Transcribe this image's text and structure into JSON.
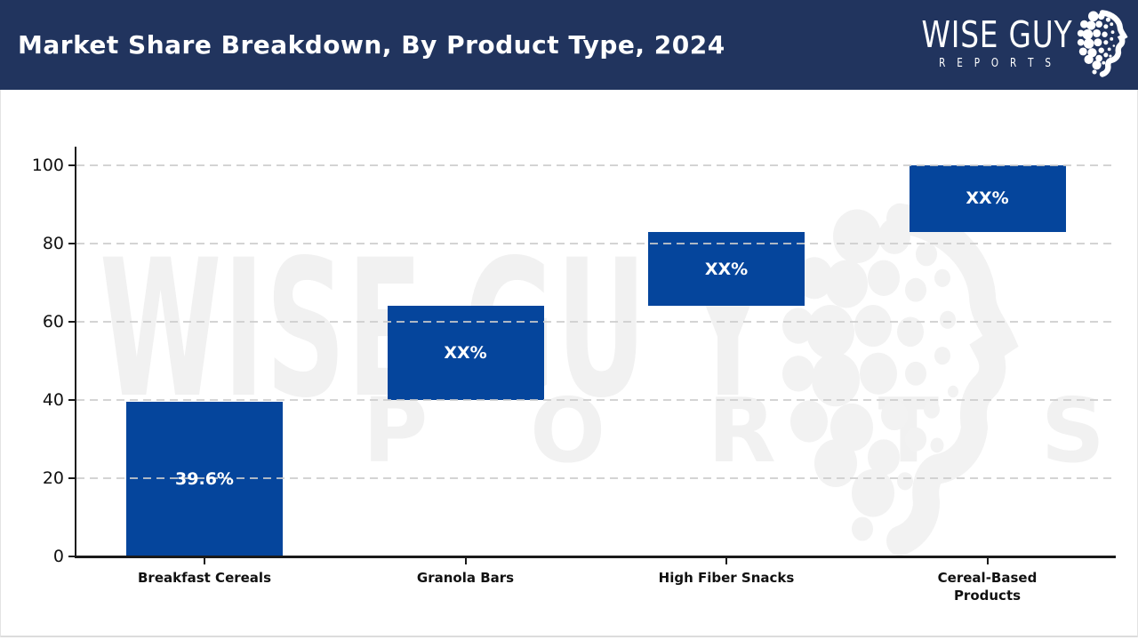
{
  "header": {
    "title": "Market Share Breakdown, By Product Type, 2024",
    "logo": {
      "line1": "WISE GUY",
      "line2": "R E P O R T S"
    }
  },
  "watermark": {
    "line1": "WISE GU Y",
    "line2": "P O R T S"
  },
  "chart_data": {
    "type": "bar",
    "subtype": "waterfall",
    "title": "Market Share Breakdown, By Product Type, 2024",
    "categories": [
      "Breakfast Cereals",
      "Granola Bars",
      "High Fiber Snacks",
      "Cereal-Based Products"
    ],
    "segments": [
      {
        "category": "Breakfast Cereals",
        "start": 0,
        "end": 39.6,
        "label": "39.6%"
      },
      {
        "category": "Granola Bars",
        "start": 40,
        "end": 64,
        "label": "XX%"
      },
      {
        "category": "High Fiber Snacks",
        "start": 64,
        "end": 83,
        "label": "XX%"
      },
      {
        "category": "Cereal-Based Products",
        "start": 83,
        "end": 100,
        "label": "XX%"
      }
    ],
    "xlabel": "",
    "ylabel": "",
    "ylim": [
      0,
      100
    ],
    "yticks": [
      0,
      20,
      40,
      60,
      80,
      100
    ],
    "grid": "horizontal-dashed-drawn-above-bars",
    "legend": "none",
    "bar_color": "#05459c"
  },
  "colors": {
    "header_bg": "#21345e",
    "bar": "#05459c",
    "grid": "#cccccc",
    "axis": "#1a1a1a",
    "watermark": "#f1f1f1",
    "page_bg": "#ffffff"
  }
}
